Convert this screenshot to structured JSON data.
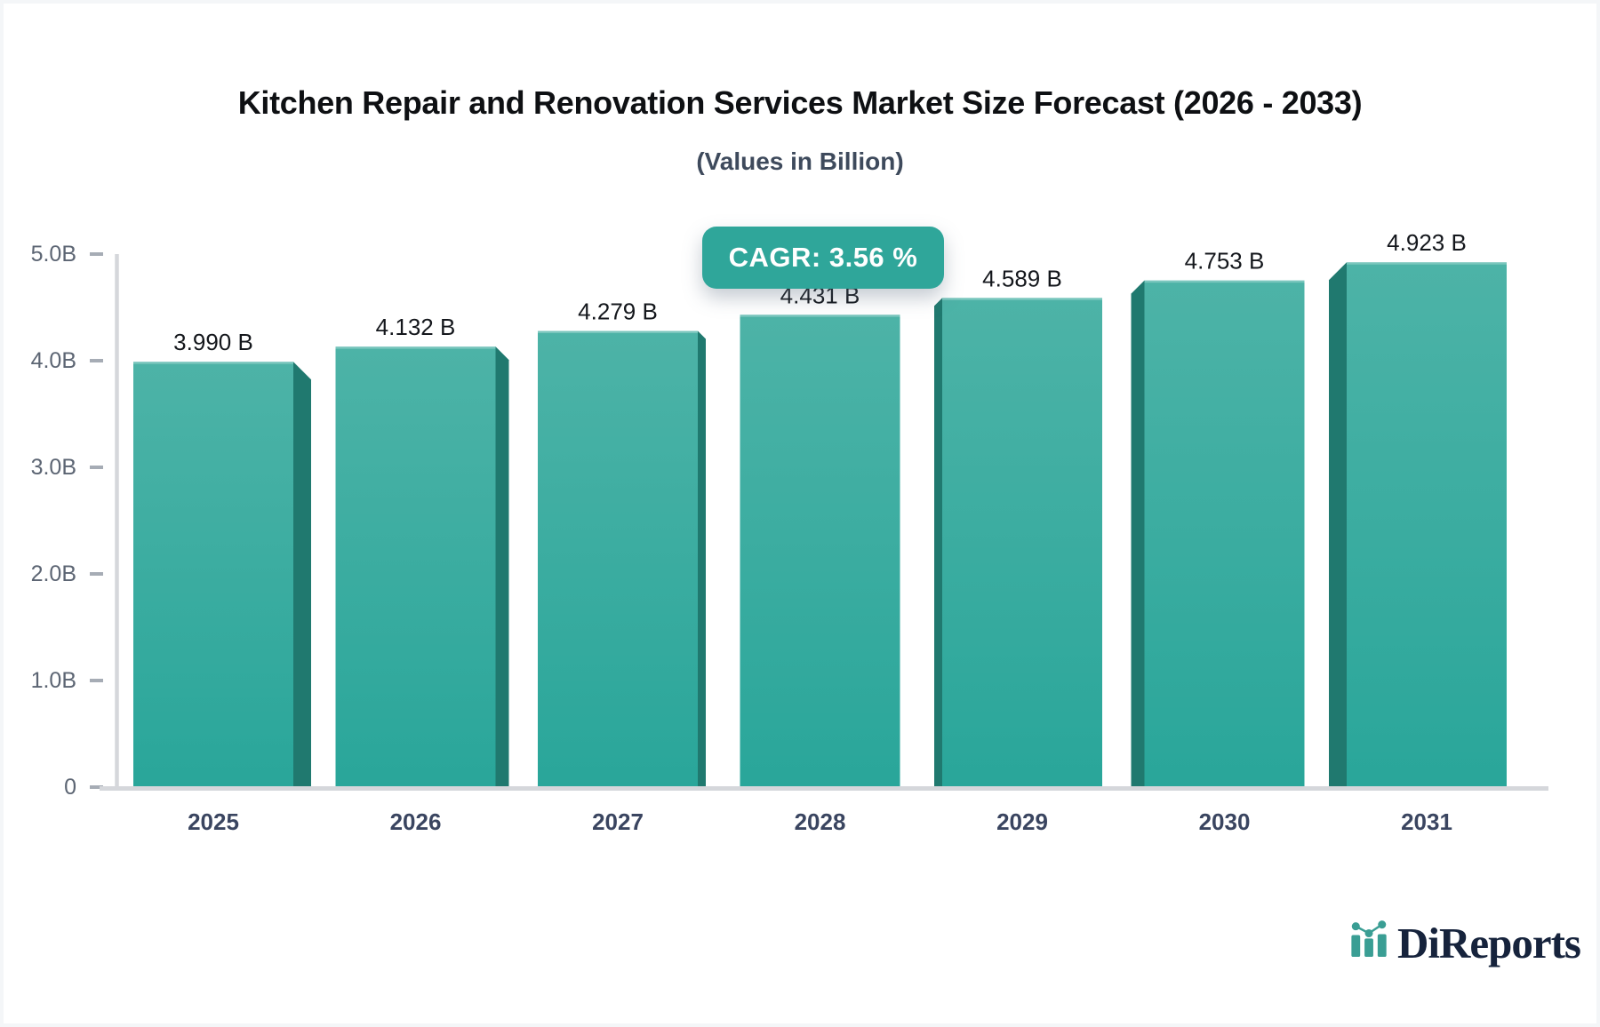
{
  "colors": {
    "title": "#0e1013",
    "subtitle": "#3e4a5c",
    "bar_face_top": "#4db3a7",
    "bar_face_bottom": "#29a69a",
    "bar_side": "#20796f",
    "axis_line": "#d5d7db",
    "tick_dash": "#a6acb5",
    "tick_label": "#5c6573",
    "category_label": "#3a4560",
    "value_label": "#14171c",
    "badge_bg": "#2fa69a",
    "badge_text": "#ffffff",
    "logo_teal": "#3a9e94",
    "logo_text": "#16233c"
  },
  "logo": {
    "text": "DiReports",
    "icon": "bar-line-chart-icon"
  },
  "chart_data": {
    "type": "bar",
    "style": "3d-perspective-bars",
    "title": "Kitchen Repair and Renovation Services Market Size Forecast (2026 - 2033)",
    "subtitle": "(Values in Billion)",
    "annotation": "CAGR: 3.56 %",
    "categories": [
      "2025",
      "2026",
      "2027",
      "2028",
      "2029",
      "2030",
      "2031"
    ],
    "values": [
      3.99,
      4.132,
      4.279,
      4.431,
      4.589,
      4.753,
      4.923
    ],
    "value_labels": [
      "3.990 B",
      "4.132 B",
      "4.279 B",
      "4.431 B",
      "4.589 B",
      "4.753 B",
      "4.923 B"
    ],
    "xlabel": "",
    "ylabel": "",
    "ylim": [
      0,
      5
    ],
    "yticks": [
      {
        "v": 0,
        "label": "0"
      },
      {
        "v": 1,
        "label": "1.0B"
      },
      {
        "v": 2,
        "label": "2.0B"
      },
      {
        "v": 3,
        "label": "3.0B"
      },
      {
        "v": 4,
        "label": "4.0B"
      },
      {
        "v": 5,
        "label": "5.0B"
      }
    ],
    "grid": false,
    "legend": "none"
  }
}
